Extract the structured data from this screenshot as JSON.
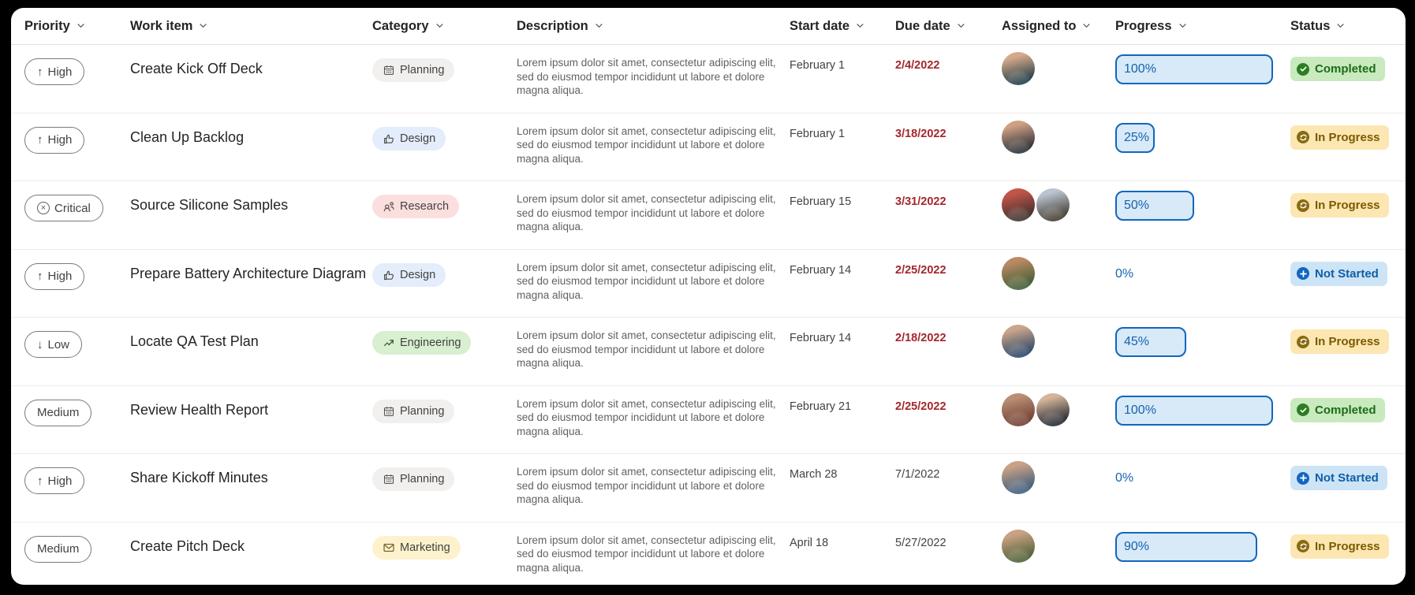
{
  "table": {
    "columns": [
      {
        "key": "priority",
        "label": "Priority"
      },
      {
        "key": "work_item",
        "label": "Work item"
      },
      {
        "key": "category",
        "label": "Category"
      },
      {
        "key": "description",
        "label": "Description"
      },
      {
        "key": "start_date",
        "label": "Start date"
      },
      {
        "key": "due_date",
        "label": "Due date"
      },
      {
        "key": "assigned_to",
        "label": "Assigned to"
      },
      {
        "key": "progress",
        "label": "Progress"
      },
      {
        "key": "status",
        "label": "Status"
      }
    ],
    "priority_styles": {
      "High": {
        "icon": "arrow-up-icon",
        "glyph": "↑"
      },
      "Low": {
        "icon": "arrow-down-icon",
        "glyph": "↓"
      },
      "Critical": {
        "icon": "circle-cross-icon",
        "glyph": "×"
      },
      "Medium": {
        "icon": "",
        "glyph": ""
      }
    },
    "category_styles": {
      "Planning": {
        "bg": "#f1f0ee",
        "icon": "calendar-icon"
      },
      "Design": {
        "bg": "#e3edfb",
        "icon": "thumbs-up-icon"
      },
      "Research": {
        "bg": "#fbdfde",
        "icon": "people-icon"
      },
      "Engineering": {
        "bg": "#d8efd0",
        "icon": "trend-up-icon"
      },
      "Marketing": {
        "bg": "#fdf2cc",
        "icon": "mail-icon"
      }
    },
    "status_styles": {
      "Completed": {
        "bg": "#c8eabe",
        "fg": "#1d6b1a",
        "icon_bg": "#2e7d22",
        "icon": "check-icon"
      },
      "In Progress": {
        "bg": "#fce7b2",
        "fg": "#7a5a00",
        "icon_bg": "#8a6a10",
        "icon": "sync-icon"
      },
      "Not Started": {
        "bg": "#cde4f7",
        "fg": "#0e5fa6",
        "icon_bg": "#1266be",
        "icon": "plus-icon"
      }
    },
    "progress_colors": {
      "fill": "#d8e9f8",
      "border": "#1266be",
      "text": "#1464ae"
    },
    "overdue_color": "#a4262c",
    "rows": [
      {
        "priority": "High",
        "work_item": "Create Kick Off Deck",
        "category": "Planning",
        "description": "Lorem ipsum dolor sit amet, consectetur adipiscing elit, sed do eiusmod tempor incididunt ut labore et dolore magna aliqua.",
        "start_date": "February 1",
        "due_date": "2/4/2022",
        "overdue": true,
        "assignees": [
          {
            "colors": [
              "#d7a98c",
              "#1d3b45"
            ]
          }
        ],
        "progress_percent": 100,
        "progress_label": "100%",
        "status": "Completed"
      },
      {
        "priority": "High",
        "work_item": "Clean Up Backlog",
        "category": "Design",
        "description": "Lorem ipsum dolor sit amet, consectetur adipiscing elit, sed do eiusmod tempor incididunt ut labore et dolore magna aliqua.",
        "start_date": "February 1",
        "due_date": "3/18/2022",
        "overdue": true,
        "assignees": [
          {
            "colors": [
              "#cfa084",
              "#262c33"
            ]
          }
        ],
        "progress_percent": 25,
        "progress_label": "25%",
        "status": "In Progress"
      },
      {
        "priority": "Critical",
        "work_item": "Source Silicone Samples",
        "category": "Research",
        "description": "Lorem ipsum dolor sit amet, consectetur adipiscing elit, sed do eiusmod tempor incididunt ut labore et dolore magna aliqua.",
        "start_date": "February 15",
        "due_date": "3/31/2022",
        "overdue": true,
        "assignees": [
          {
            "colors": [
              "#c2554a",
              "#3a2e2b"
            ]
          },
          {
            "colors": [
              "#b9c4cf",
              "#41392e"
            ]
          }
        ],
        "progress_percent": 50,
        "progress_label": "50%",
        "status": "In Progress"
      },
      {
        "priority": "High",
        "work_item": "Prepare Battery Architecture Diagram",
        "category": "Design",
        "description": "Lorem ipsum dolor sit amet, consectetur adipiscing elit, sed do eiusmod tempor incididunt ut labore et dolore magna aliqua.",
        "start_date": "February 14",
        "due_date": "2/25/2022",
        "overdue": true,
        "assignees": [
          {
            "colors": [
              "#b98a63",
              "#3e5a32"
            ]
          }
        ],
        "progress_percent": 0,
        "progress_label": "0%",
        "status": "Not Started"
      },
      {
        "priority": "Low",
        "work_item": "Locate QA Test Plan",
        "category": "Engineering",
        "description": "Lorem ipsum dolor sit amet, consectetur adipiscing elit, sed do eiusmod tempor incididunt ut labore et dolore magna aliqua.",
        "start_date": "February 14",
        "due_date": "2/18/2022",
        "overdue": true,
        "assignees": [
          {
            "colors": [
              "#caa58a",
              "#274468"
            ]
          }
        ],
        "progress_percent": 45,
        "progress_label": "45%",
        "status": "In Progress"
      },
      {
        "priority": "Medium",
        "work_item": "Review Health Report",
        "category": "Planning",
        "description": "Lorem ipsum dolor sit amet, consectetur adipiscing elit, sed do eiusmod tempor incididunt ut labore et dolore magna aliqua.",
        "start_date": "February 21",
        "due_date": "2/25/2022",
        "overdue": true,
        "assignees": [
          {
            "colors": [
              "#b98e74",
              "#6e3c30"
            ]
          },
          {
            "colors": [
              "#d4b49a",
              "#20262e"
            ]
          }
        ],
        "progress_percent": 100,
        "progress_label": "100%",
        "status": "Completed"
      },
      {
        "priority": "High",
        "work_item": "Share Kickoff Minutes",
        "category": "Planning",
        "description": "Lorem ipsum dolor sit amet, consectetur adipiscing elit, sed do eiusmod tempor incididunt ut labore et dolore magna aliqua.",
        "start_date": "March 28",
        "due_date": "7/1/2022",
        "overdue": false,
        "assignees": [
          {
            "colors": [
              "#c9a286",
              "#3a5a7a"
            ]
          }
        ],
        "progress_percent": 0,
        "progress_label": "0%",
        "status": "Not Started"
      },
      {
        "priority": "Medium",
        "work_item": "Create Pitch Deck",
        "category": "Marketing",
        "description": "Lorem ipsum dolor sit amet, consectetur adipiscing elit, sed do eiusmod tempor incididunt ut labore et dolore magna aliqua.",
        "start_date": "April 18",
        "due_date": "5/27/2022",
        "overdue": false,
        "assignees": [
          {
            "colors": [
              "#caa184",
              "#4a5e33"
            ]
          }
        ],
        "progress_percent": 90,
        "progress_label": "90%",
        "status": "In Progress"
      }
    ]
  }
}
